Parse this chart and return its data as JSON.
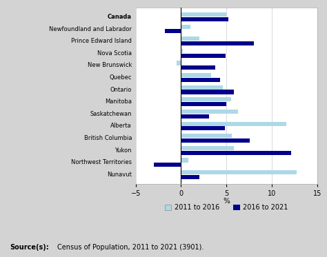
{
  "categories": [
    "Canada",
    "Newfoundland and Labrador",
    "Prince Edward Island",
    "Nova Scotia",
    "New Brunswick",
    "Quebec",
    "Ontario",
    "Manitoba",
    "Saskatchewan",
    "Alberta",
    "British Columbia",
    "Yukon",
    "Northwest Territories",
    "Nunavut"
  ],
  "series_2011_2016": [
    5.0,
    1.0,
    2.0,
    0.2,
    -0.5,
    3.3,
    4.6,
    5.5,
    6.3,
    11.6,
    5.6,
    5.8,
    0.8,
    12.7
  ],
  "series_2016_2021": [
    5.2,
    -1.8,
    8.0,
    4.9,
    3.8,
    4.3,
    5.8,
    5.0,
    3.1,
    4.8,
    7.6,
    12.1,
    -3.0,
    2.0
  ],
  "color_2011_2016": "#add8e6",
  "color_2016_2021": "#00008b",
  "xlim": [
    -5,
    15
  ],
  "xticks": [
    -5,
    0,
    5,
    10,
    15
  ],
  "xlabel": "%",
  "background_color": "#d3d3d3",
  "plot_background": "#ffffff",
  "legend_label_1": "2011 to 2016",
  "legend_label_2": "2016 to 2021"
}
